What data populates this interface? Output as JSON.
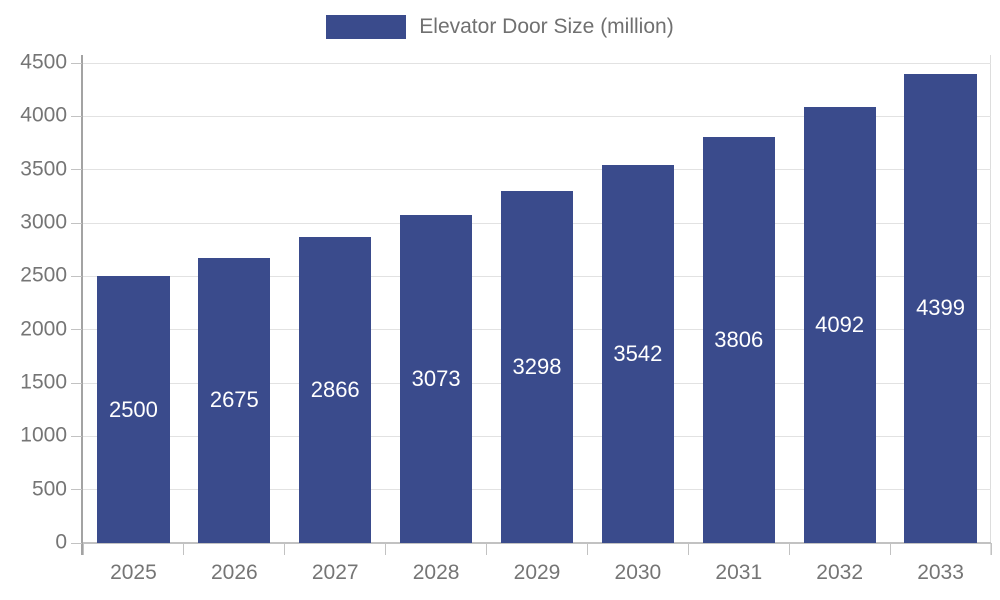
{
  "legend": {
    "label": "Elevator Door Size (million)"
  },
  "palette": {
    "bar_color": "#3A4B8C",
    "bar_label_color": "#ffffff",
    "grid_color": "#e2e2e2",
    "y_axis_color": "#a3a3a3",
    "x_axis_color": "#c2c2c2",
    "tick_color": "#c2c2c2",
    "axis_label_color": "#757575",
    "border_color": "#dddddd"
  },
  "chart_data": {
    "type": "bar",
    "title": "Elevator Door Size (million)",
    "categories": [
      "2025",
      "2026",
      "2027",
      "2028",
      "2029",
      "2030",
      "2031",
      "2032",
      "2033"
    ],
    "values": [
      2500,
      2675,
      2866,
      3073,
      3298,
      3542,
      3806,
      4092,
      4399
    ],
    "xlabel": "",
    "ylabel": "",
    "ylim": [
      0,
      4500
    ],
    "yticks": [
      0,
      500,
      1000,
      1500,
      2000,
      2500,
      3000,
      3500,
      4000,
      4500
    ],
    "grid": true,
    "legend_position": "top-center",
    "bar_labels_inside": true
  }
}
